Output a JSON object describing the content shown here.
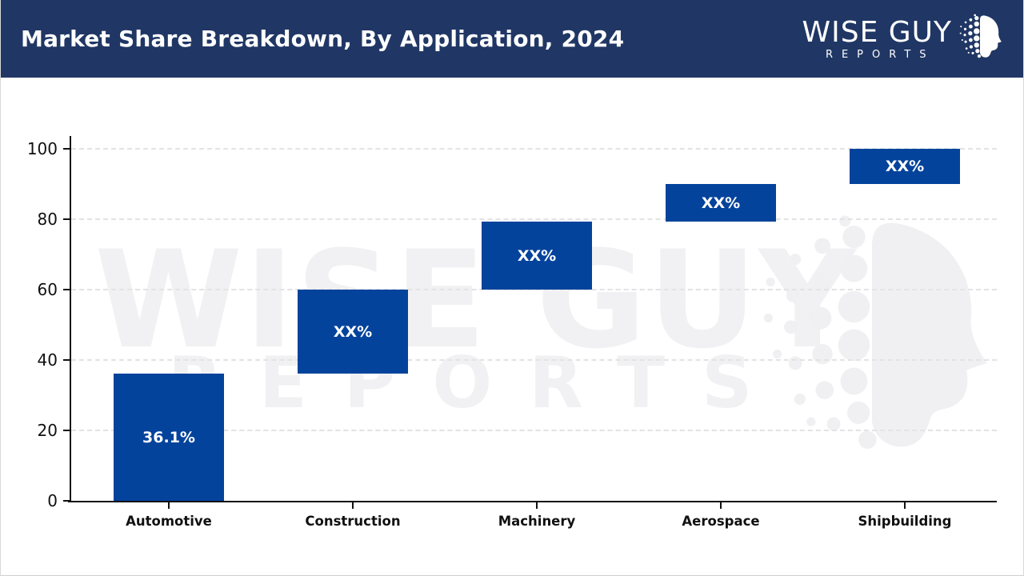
{
  "header": {
    "title": "Market Share Breakdown, By Application, 2024"
  },
  "logo": {
    "name": "WISE GUY",
    "tagline": "REPORTS"
  },
  "watermark": {
    "name": "WISE GUY",
    "tagline": "REPORTS"
  },
  "chart_data": {
    "type": "bar",
    "subtype": "waterfall",
    "title": "Market Share Breakdown, By Application, 2024",
    "categories": [
      "Automotive",
      "Construction",
      "Machinery",
      "Aerospace",
      "Shipbuilding"
    ],
    "segments": [
      {
        "category": "Automotive",
        "start": 0,
        "end": 36.1,
        "label": "36.1%"
      },
      {
        "category": "Construction",
        "start": 36.1,
        "end": 60.0,
        "label": "XX%"
      },
      {
        "category": "Machinery",
        "start": 60.0,
        "end": 79.3,
        "label": "XX%"
      },
      {
        "category": "Aerospace",
        "start": 79.3,
        "end": 90.0,
        "label": "XX%"
      },
      {
        "category": "Shipbuilding",
        "start": 90.0,
        "end": 100.0,
        "label": "XX%"
      }
    ],
    "ylim": [
      0,
      100
    ],
    "yticks": [
      0,
      20,
      40,
      60,
      80,
      100
    ],
    "grid": "horizontal-dashed",
    "legend": "none",
    "bar_color": "#04439c",
    "bar_label_color": "#ffffff",
    "axis_color": "#111111",
    "header_color": "#203765",
    "watermark_color": "#f1f1f3"
  }
}
